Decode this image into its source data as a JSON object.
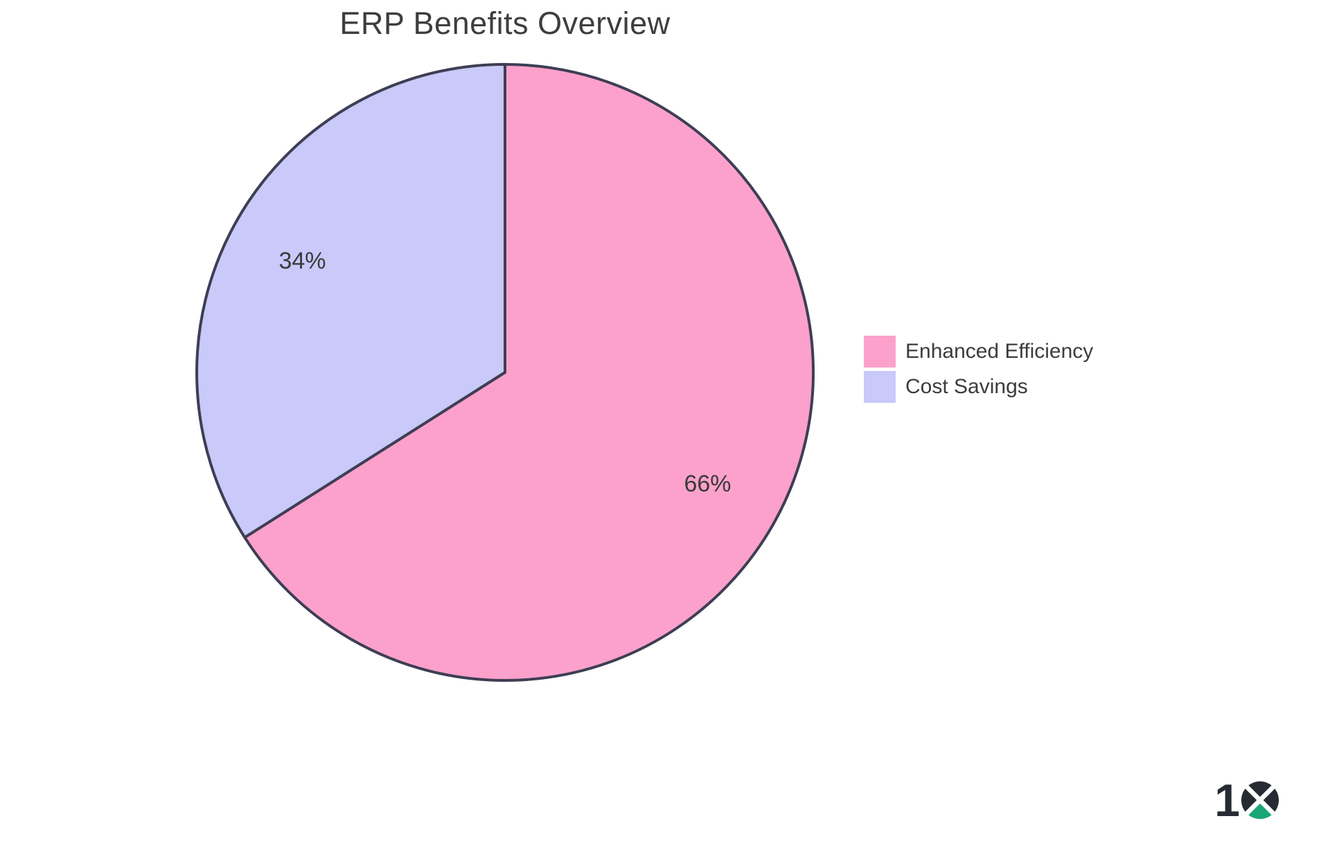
{
  "page": {
    "background": "#ffffff"
  },
  "chart_data": {
    "type": "pie",
    "title": "ERP Benefits Overview",
    "series": [
      {
        "label": "Enhanced Efficiency",
        "value": 66,
        "percent_label": "66%",
        "color": "#FCA1CB"
      },
      {
        "label": "Cost Savings",
        "value": 34,
        "percent_label": "34%",
        "color": "#C9C9FA"
      }
    ],
    "start_angle_deg": 0,
    "direction": "clockwise",
    "stroke_color": "#3E3E54",
    "stroke_width": 4,
    "labels_inside": true,
    "label_radius_ratio": 0.75,
    "legend_position": "right"
  },
  "branding": {
    "logo_text": "1",
    "logo_mark": "quartered-circle-x-mark",
    "logo_dark_color": "#262a33",
    "logo_accent_color": "#1AA676",
    "logo_divider_color": "#ffffff"
  }
}
